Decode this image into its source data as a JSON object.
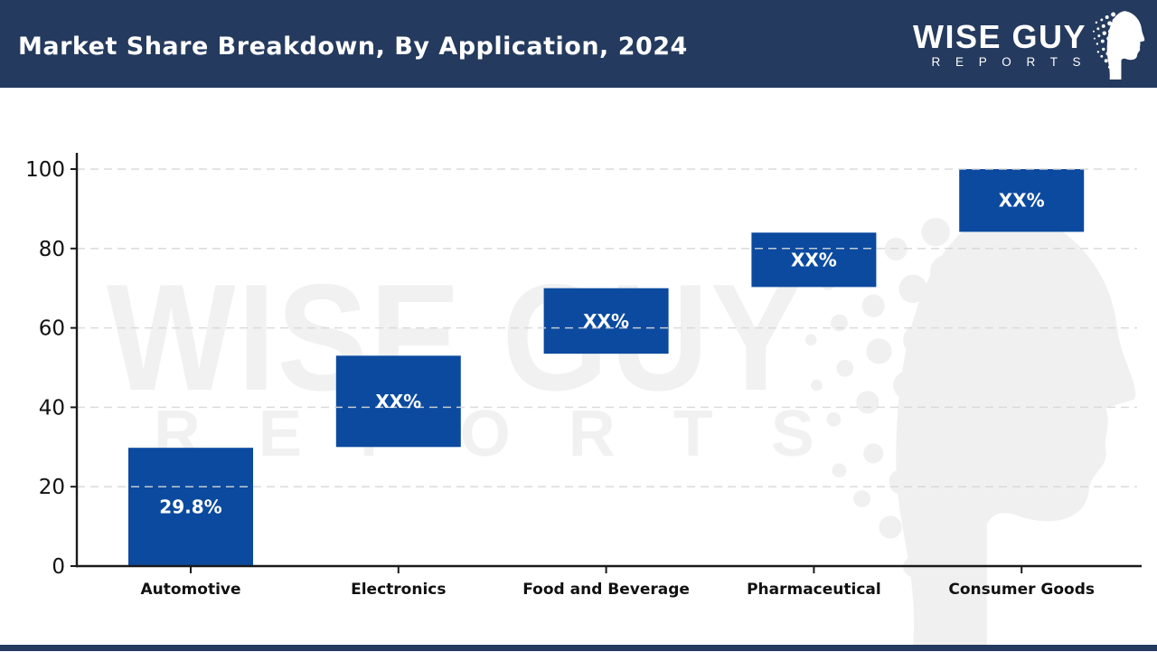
{
  "header": {
    "title": "Market Share Breakdown, By Application, 2024",
    "logo": {
      "line1": "WISE GUY",
      "line2": "R E P O R T S"
    }
  },
  "watermark": {
    "line1": "WISE GUY",
    "line2": "R E P O R T S"
  },
  "chart_data": {
    "type": "bar",
    "variant": "waterfall",
    "title": "Market Share Breakdown, By Application, 2024",
    "categories": [
      "Automotive",
      "Electronics",
      "Food and Beverage",
      "Pharmaceutical",
      "Consumer Goods"
    ],
    "segments": [
      {
        "category": "Automotive",
        "start": 0,
        "end": 29.8,
        "label": "29.8%"
      },
      {
        "category": "Electronics",
        "start": 30,
        "end": 53,
        "label": "XX%"
      },
      {
        "category": "Food and Beverage",
        "start": 53.5,
        "end": 70,
        "label": "XX%"
      },
      {
        "category": "Pharmaceutical",
        "start": 70.3,
        "end": 84,
        "label": "XX%"
      },
      {
        "category": "Consumer Goods",
        "start": 84.2,
        "end": 100,
        "label": "XX%"
      }
    ],
    "xlabel": "",
    "ylabel": "",
    "ylim": [
      0,
      104
    ],
    "yticks": [
      0,
      20,
      40,
      60,
      80,
      100
    ],
    "grid": "horizontal-dashed",
    "legend": "none",
    "bar_color": "#0B4A9F",
    "bar_label_color": "#FFFFFF"
  },
  "colors": {
    "header_bg": "#243A5E",
    "footer_bg": "#243A5E",
    "bar": "#0B4A9F",
    "gridline": "#D8D8D8",
    "axis": "#1A1A1A",
    "tick_text": "#111111",
    "watermark": "#F1F1F1"
  }
}
